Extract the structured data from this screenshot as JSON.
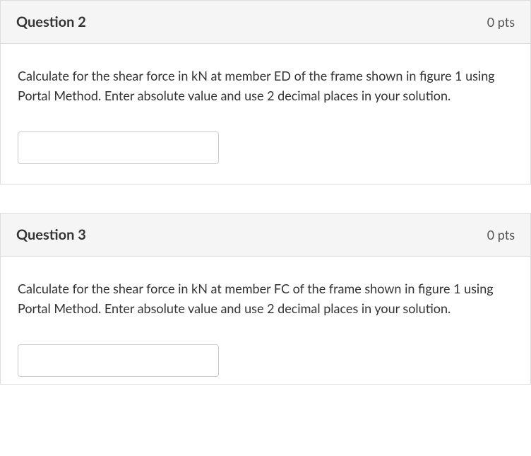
{
  "questions": [
    {
      "title": "Question 2",
      "points": "0 pts",
      "text": "Calculate for the shear force in kN at member ED of the frame shown in figure 1 using Portal Method. Enter absolute value and use 2 decimal places in your solution.",
      "answer_value": "",
      "answer_placeholder": ""
    },
    {
      "title": "Question 3",
      "points": "0 pts",
      "text": "Calculate for the shear force in kN at member FC of the frame shown in figure 1 using Portal Method. Enter absolute value and use 2 decimal places in your solution.",
      "answer_value": "",
      "answer_placeholder": ""
    }
  ],
  "styling": {
    "border_color": "#dddddd",
    "header_bg": "#f5f5f5",
    "body_bg": "#ffffff",
    "title_color": "#333333",
    "title_fontsize": 20,
    "title_fontweight": 700,
    "points_color": "#555555",
    "points_fontsize": 18,
    "body_text_color": "#333333",
    "body_text_fontsize": 18,
    "body_text_lineheight": 1.55,
    "input_border_color": "#cccccc",
    "input_width": 285,
    "input_height": 46,
    "gap_between_questions": 40
  }
}
